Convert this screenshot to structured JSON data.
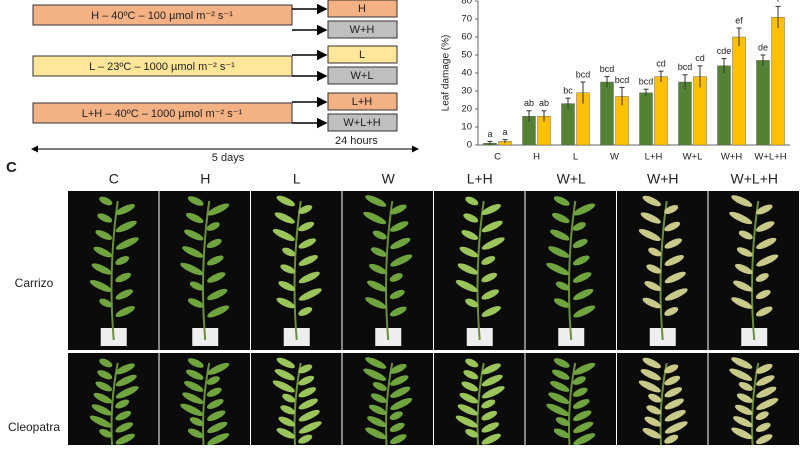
{
  "panel_label": "C",
  "diagram": {
    "treatments": [
      {
        "label": "H – 40ºC – 100 µmol m⁻² s⁻¹",
        "outputs": [
          "H",
          "W+H"
        ]
      },
      {
        "label": "L – 23ºC – 1000 µmol m⁻² s⁻¹",
        "outputs": [
          "L",
          "W+L"
        ]
      },
      {
        "label": "L+H – 40ºC – 1000 µmol m⁻² s⁻¹",
        "outputs": [
          "L+H",
          "W+L+H"
        ]
      }
    ],
    "duration_short": "24 hours",
    "duration_total": "5 days"
  },
  "chart_data": {
    "type": "bar",
    "y_label": "Leaf damage (%)",
    "categories": [
      "C",
      "H",
      "L",
      "W",
      "L+H",
      "W+L",
      "W+H",
      "W+L+H"
    ],
    "series": [
      {
        "color": "#548235",
        "values": [
          1,
          16,
          23,
          35,
          29,
          35,
          44,
          47
        ],
        "errors": [
          1,
          3,
          3,
          3,
          2,
          4,
          4,
          3
        ],
        "letters": [
          "a",
          "ab",
          "bc",
          "bcd",
          "bcd",
          "bcd",
          "cde",
          "de"
        ]
      },
      {
        "color": "#ffc000",
        "values": [
          2,
          16,
          29,
          27,
          38,
          38,
          60,
          71
        ],
        "errors": [
          1,
          3,
          6,
          5,
          3,
          6,
          5,
          6
        ],
        "letters": [
          "a",
          "ab",
          "bcd",
          "bcd",
          "cd",
          "cd",
          "ef",
          "f"
        ]
      }
    ],
    "ylim": [
      0,
      80
    ],
    "yticks": [
      0,
      10,
      20,
      30,
      40,
      50,
      60,
      70,
      80
    ],
    "grid": false
  },
  "photos": {
    "columns": [
      "C",
      "H",
      "L",
      "W",
      "L+H",
      "W+L",
      "W+H",
      "W+L+H"
    ],
    "rows": [
      "Carrizo",
      "Cleopatra"
    ]
  }
}
